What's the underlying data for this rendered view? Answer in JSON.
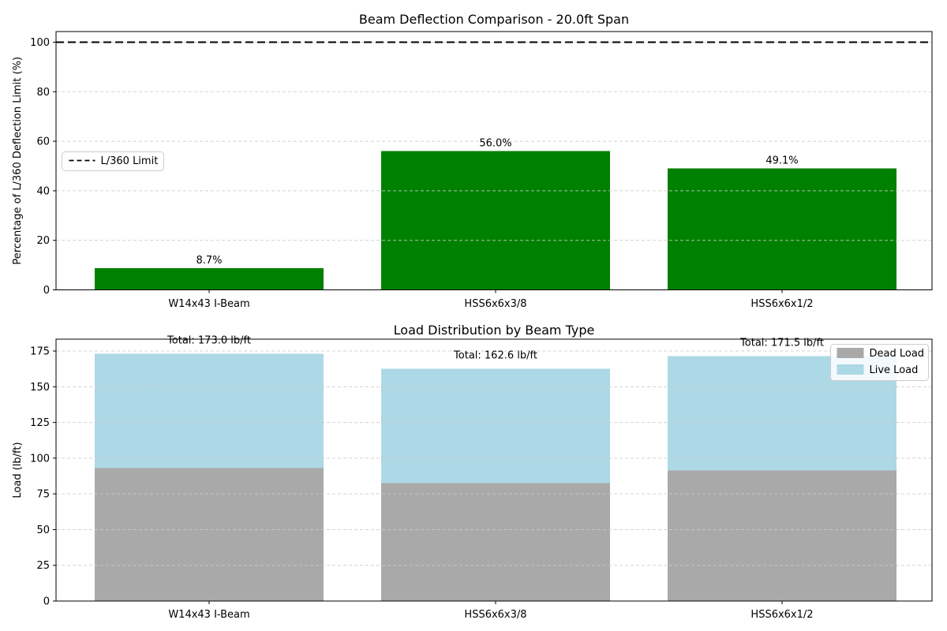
{
  "figure": {
    "background": "#ffffff",
    "text_color": "#000000",
    "grid_color": "#cccccc",
    "spine_color": "#000000"
  },
  "chart_data": [
    {
      "type": "bar",
      "title": "Beam Deflection Comparison - 20.0ft Span",
      "xlabel": "",
      "ylabel": "Percentage of L/360 Deflection Limit (%)",
      "categories": [
        "W14x43 I-Beam",
        "HSS6x6x3/8",
        "HSS6x6x1/2"
      ],
      "values": [
        8.7,
        56.0,
        49.1
      ],
      "bar_labels": [
        "8.7%",
        "56.0%",
        "49.1%"
      ],
      "bar_color": "#008000",
      "ylim": [
        0,
        104.3
      ],
      "yticks": [
        0,
        20,
        40,
        60,
        80,
        100
      ],
      "grid": true,
      "reference_line": {
        "value": 100,
        "color": "#000000",
        "style": "dashed",
        "label": "L/360 Limit"
      },
      "legend": {
        "position": "center-left",
        "entries": [
          {
            "label": "L/360 Limit",
            "swatch": "dashed-line",
            "color": "#000000"
          }
        ]
      }
    },
    {
      "type": "stacked-bar",
      "title": "Load Distribution by Beam Type",
      "xlabel": "",
      "ylabel": "Load (lb/ft)",
      "categories": [
        "W14x43 I-Beam",
        "HSS6x6x3/8",
        "HSS6x6x1/2"
      ],
      "series": [
        {
          "name": "Dead Load",
          "values": [
            93.0,
            82.6,
            91.5
          ],
          "color": "#a9a9a9"
        },
        {
          "name": "Live Load",
          "values": [
            80.0,
            80.0,
            80.0
          ],
          "color": "#add8e6"
        }
      ],
      "totals": [
        173.0,
        162.6,
        171.5
      ],
      "total_labels": [
        "Total: 173.0 lb/ft",
        "Total: 162.6 lb/ft",
        "Total: 171.5 lb/ft"
      ],
      "ylim": [
        0,
        183.3
      ],
      "yticks": [
        0,
        25,
        50,
        75,
        100,
        125,
        150,
        175
      ],
      "grid": true,
      "legend": {
        "position": "top-right",
        "entries": [
          {
            "label": "Dead Load",
            "swatch": "patch",
            "color": "#a9a9a9"
          },
          {
            "label": "Live Load",
            "swatch": "patch",
            "color": "#add8e6"
          }
        ]
      }
    }
  ]
}
